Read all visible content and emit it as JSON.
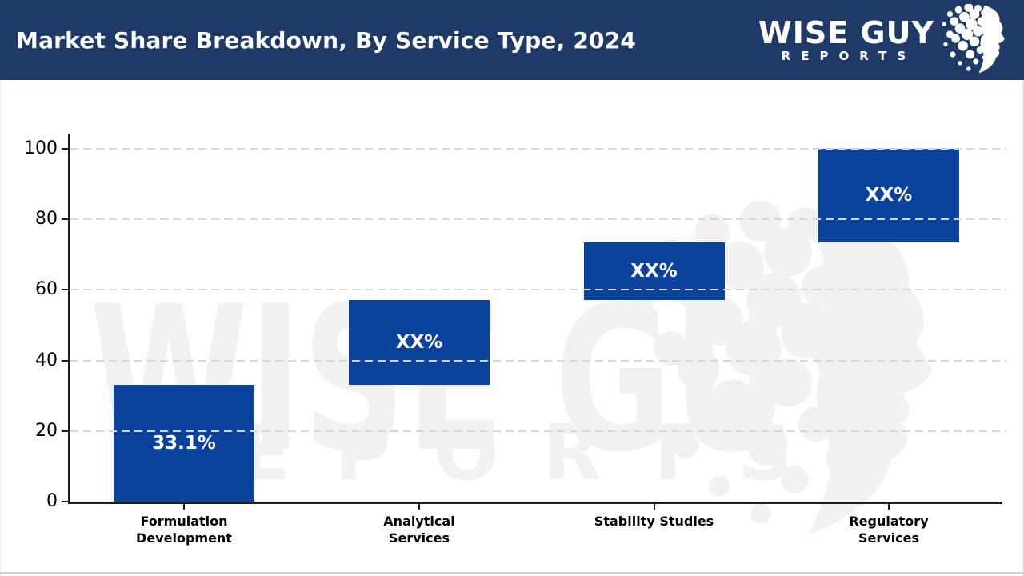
{
  "header": {
    "title": "Market Share Breakdown, By Service Type, 2024",
    "logo": {
      "line1": "WISE GUY",
      "line2": "REPORTS"
    },
    "bg_color": "#203a67"
  },
  "watermark": {
    "line1": "WISE GUY",
    "line2": "REPORTS"
  },
  "chart_data": {
    "type": "bar",
    "variant": "waterfall",
    "title": "Market Share Breakdown, By Service Type, 2024",
    "xlabel": "",
    "ylabel": "",
    "categories": [
      "Formulation Development",
      "Analytical Services",
      "Stability Studies",
      "Regulatory Services"
    ],
    "category_label_lines": [
      [
        "Formulation",
        "Development"
      ],
      [
        "Analytical",
        "Services"
      ],
      [
        "Stability Studies"
      ],
      [
        "Regulatory",
        "Services"
      ]
    ],
    "segments": [
      {
        "category": "Formulation Development",
        "start": 0,
        "end": 33.1,
        "label": "33.1%"
      },
      {
        "category": "Analytical Services",
        "start": 33.1,
        "end": 57.1,
        "label": "XX%"
      },
      {
        "category": "Stability Studies",
        "start": 57.1,
        "end": 73.5,
        "label": "XX%"
      },
      {
        "category": "Regulatory Services",
        "start": 73.5,
        "end": 100,
        "label": "XX%"
      }
    ],
    "ylim": [
      0,
      100
    ],
    "yticks": [
      0,
      20,
      40,
      60,
      80,
      100
    ],
    "grid": {
      "axis": "y",
      "style": "dashed",
      "color": "#d7d7d7",
      "drawn_over_bars": true
    },
    "legend": "none",
    "colors": {
      "bar": "#0b429b",
      "value_label": "#ffffff",
      "axis": "#1c1c1c",
      "header": "#203a67",
      "watermark": "#f1f1f1"
    }
  }
}
